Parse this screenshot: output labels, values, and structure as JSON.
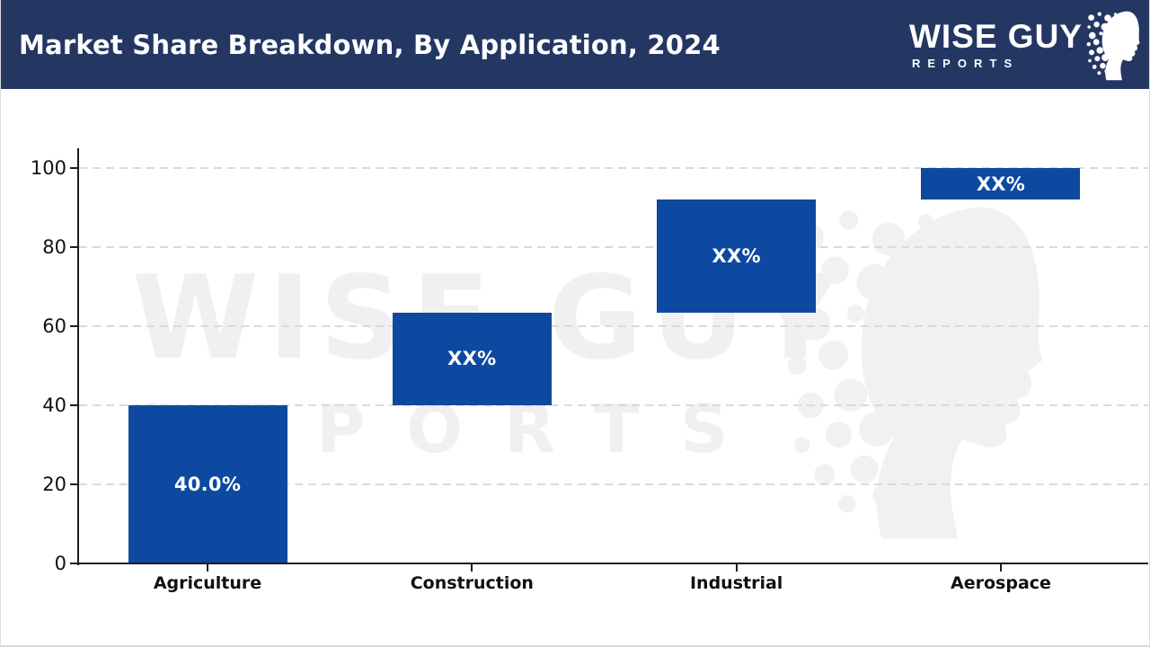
{
  "header": {
    "title": "Market Share Breakdown, By Application, 2024",
    "bg_color": "#243763",
    "logo": {
      "line1": "WISE GUY",
      "line2": "REPORTS"
    }
  },
  "watermark": {
    "line1": "WISE GUY",
    "line2": "REPORTS"
  },
  "chart_data": {
    "type": "bar",
    "subtype": "waterfall",
    "title": "Market Share Breakdown, By Application, 2024",
    "categories": [
      "Agriculture",
      "Construction",
      "Industrial",
      "Aerospace"
    ],
    "segments": [
      {
        "category": "Agriculture",
        "start": 0,
        "end": 40,
        "value_estimate": 40.0,
        "label": "40.0%"
      },
      {
        "category": "Construction",
        "start": 40,
        "end": 63.5,
        "value_estimate": 23.5,
        "label": "XX%"
      },
      {
        "category": "Industrial",
        "start": 63.5,
        "end": 92,
        "value_estimate": 28.5,
        "label": "XX%"
      },
      {
        "category": "Aerospace",
        "start": 92,
        "end": 100,
        "value_estimate": 8.0,
        "label": "XX%"
      }
    ],
    "y_ticks": [
      0,
      20,
      40,
      60,
      80,
      100
    ],
    "ylim": [
      0,
      105
    ],
    "xlabel": "",
    "ylabel": "",
    "bar_color": "#0d49a0",
    "grid": {
      "axis": "y",
      "style": "dashed",
      "color": "#dadada"
    },
    "legend": null
  }
}
